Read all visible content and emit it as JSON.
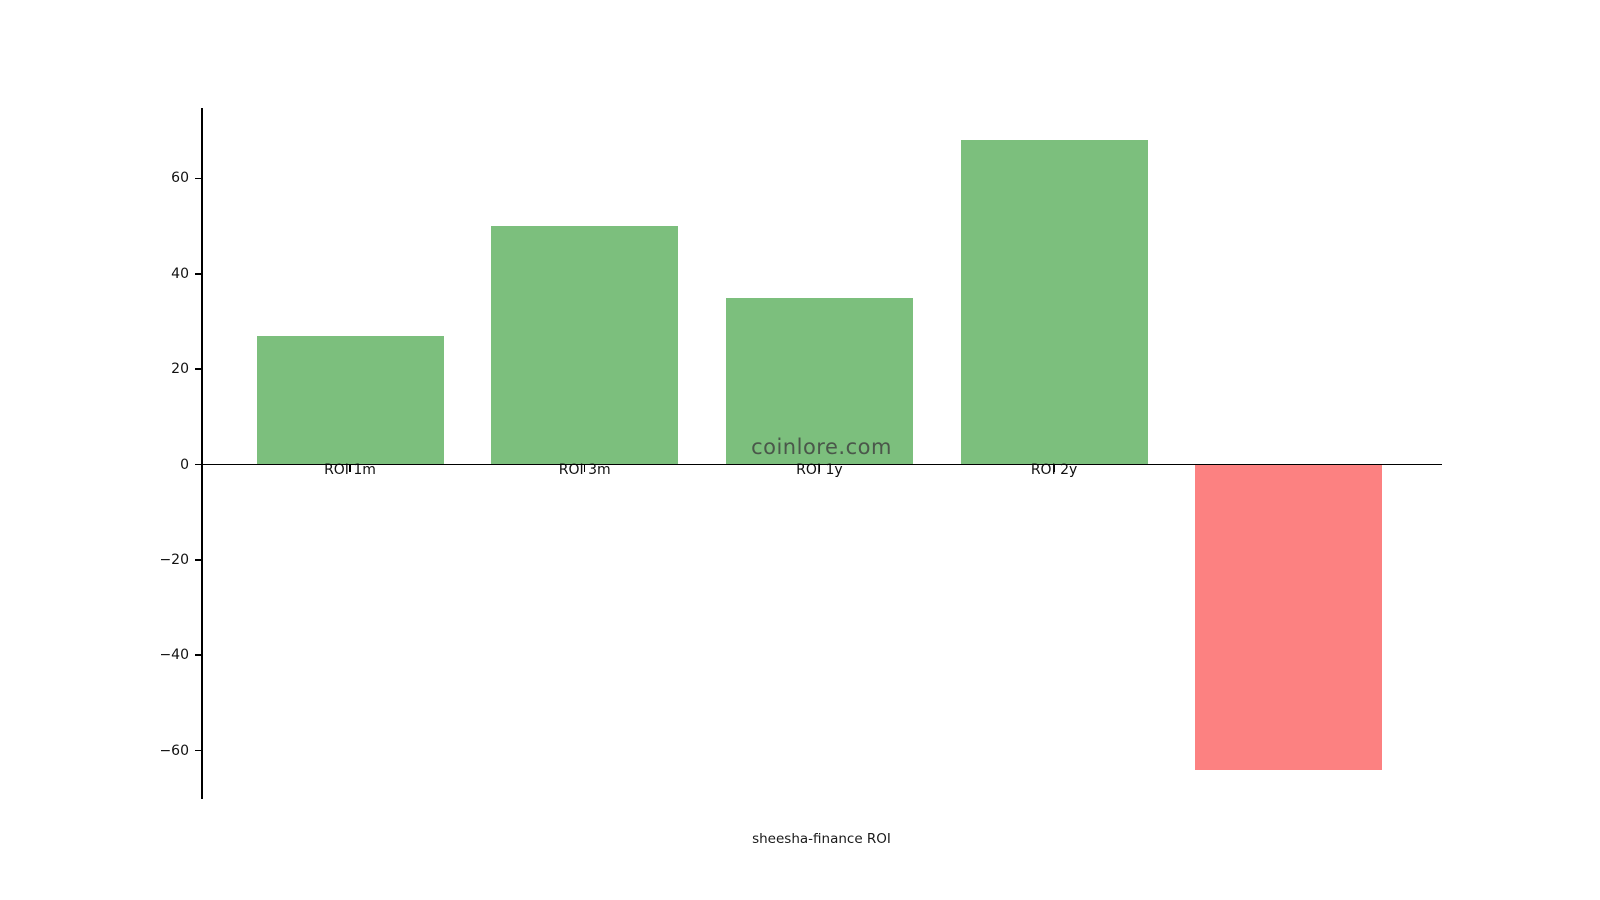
{
  "page": {
    "background_color": "#ffffff"
  },
  "watermark": {
    "text": "coinlore.com"
  },
  "chart_data": {
    "type": "bar",
    "title": "sheesha-finance ROI",
    "categories": [
      "ROI 1m",
      "ROI 3m",
      "ROI 1y",
      "ROI 2y",
      ""
    ],
    "values": [
      27,
      50,
      35,
      68,
      -64
    ],
    "series": [
      {
        "name": "ROI",
        "values": [
          27,
          50,
          35,
          68,
          -64
        ]
      }
    ],
    "positive_color": "#7cbf7d",
    "negative_color": "#fc8181",
    "bar_colors": [
      "#7cbf7d",
      "#7cbf7d",
      "#7cbf7d",
      "#7cbf7d",
      "#fc8181"
    ],
    "axis_color": "#000000",
    "ytick_values": [
      60,
      40,
      20,
      0,
      -20,
      -40,
      -60
    ],
    "ytick_labels": [
      "60",
      "40",
      "20",
      "0",
      "−20",
      "−40",
      "−60"
    ],
    "ylim": [
      -70,
      75
    ],
    "xlabel": "",
    "ylabel": "",
    "grid": false,
    "legend": "none",
    "notes": "fifth bar has no x-axis tick or label"
  }
}
